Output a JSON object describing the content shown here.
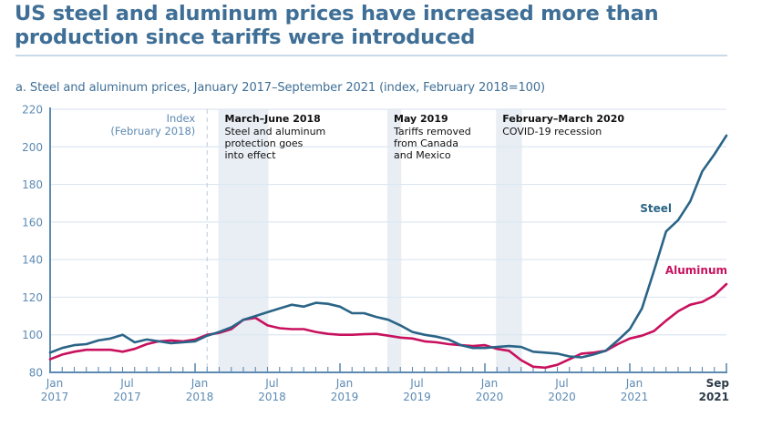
{
  "header": {
    "title_line1": "US steel and aluminum prices have increased more than",
    "title_line2": "production since tariffs were introduced",
    "subtitle": "a.  Steel and aluminum prices, January 2017–September 2021 (index, February 2018=100)"
  },
  "colors": {
    "steel": "#2a6487",
    "aluminum": "#c8115e",
    "axis": "#5d8ab3",
    "grid": "#dde7f1",
    "shade": "#e8eef4",
    "title": "#3f6f96"
  },
  "chart_data": {
    "type": "line",
    "title": "Steel and aluminum prices, January 2017–September 2021 (index, February 2018=100)",
    "xlabel": "",
    "ylabel": "Index (February 2018)",
    "ylim": [
      80,
      220
    ],
    "yticks": [
      80,
      100,
      120,
      140,
      160,
      180,
      200,
      220
    ],
    "grid": true,
    "x_start": "2017-01",
    "x_end": "2021-09",
    "x_ticks": [
      {
        "month_index": 0,
        "line1": "Jan",
        "line2": "2017",
        "bold": false
      },
      {
        "month_index": 6,
        "line1": "Jul",
        "line2": "2017",
        "bold": false
      },
      {
        "month_index": 12,
        "line1": "Jan",
        "line2": "2018",
        "bold": false
      },
      {
        "month_index": 18,
        "line1": "Jul",
        "line2": "2018",
        "bold": false
      },
      {
        "month_index": 24,
        "line1": "Jan",
        "line2": "2019",
        "bold": false
      },
      {
        "month_index": 30,
        "line1": "Jul",
        "line2": "2019",
        "bold": false
      },
      {
        "month_index": 36,
        "line1": "Jan",
        "line2": "2020",
        "bold": false
      },
      {
        "month_index": 42,
        "line1": "Jul",
        "line2": "2020",
        "bold": false
      },
      {
        "month_index": 48,
        "line1": "Jan",
        "line2": "2021",
        "bold": false
      },
      {
        "month_index": 56,
        "line1": "Sep",
        "line2": "2021",
        "bold": true
      }
    ],
    "reference_line": {
      "month_index": 13,
      "label_line1": "Index",
      "label_line2": "(February 2018)"
    },
    "shaded_periods": [
      {
        "start": 14,
        "end": 18,
        "title": "March–June 2018",
        "lines": [
          "Steel and aluminum",
          "protection goes",
          "into effect"
        ]
      },
      {
        "start": 28,
        "end": 29,
        "title": "May 2019",
        "lines": [
          "Tariffs removed",
          "from Canada",
          "and Mexico"
        ]
      },
      {
        "start": 37,
        "end": 39,
        "title": "February–March 2020",
        "lines": [
          "COVID-19 recession"
        ]
      }
    ],
    "series": [
      {
        "name": "Steel",
        "values": [
          90.5,
          93,
          94.5,
          95,
          97,
          98,
          100,
          96,
          97.5,
          96.5,
          95.5,
          96,
          96.5,
          99.5,
          101.5,
          104,
          108,
          110,
          112,
          114,
          116,
          115,
          117,
          116.5,
          115,
          111.5,
          111.5,
          109.5,
          108,
          105,
          101.5,
          100,
          99,
          97.5,
          94.5,
          93,
          93,
          93.5,
          94,
          93.5,
          91,
          90.5,
          90,
          88.5,
          88,
          89.5,
          91.5,
          97,
          103,
          114,
          134,
          155,
          161,
          171,
          187,
          196,
          206
        ]
      },
      {
        "name": "Aluminum",
        "values": [
          87,
          89.5,
          91,
          92,
          92,
          92,
          91,
          92.5,
          95,
          96.5,
          97,
          96.5,
          97.5,
          100,
          101,
          103,
          108,
          109,
          105,
          103.5,
          103,
          103,
          101.5,
          100.5,
          100,
          100,
          100.3,
          100.5,
          99.5,
          98.5,
          98,
          96.5,
          96,
          95,
          94.5,
          94,
          94.5,
          92.5,
          91.5,
          86.5,
          83,
          82.5,
          84,
          87,
          90,
          90.5,
          91.5,
          95,
          98,
          99.5,
          102,
          107.5,
          112.5,
          116,
          117.5,
          121,
          127
        ]
      }
    ],
    "series_labels": [
      {
        "series": "Steel",
        "text": "Steel"
      },
      {
        "series": "Aluminum",
        "text": "Aluminum"
      }
    ]
  }
}
